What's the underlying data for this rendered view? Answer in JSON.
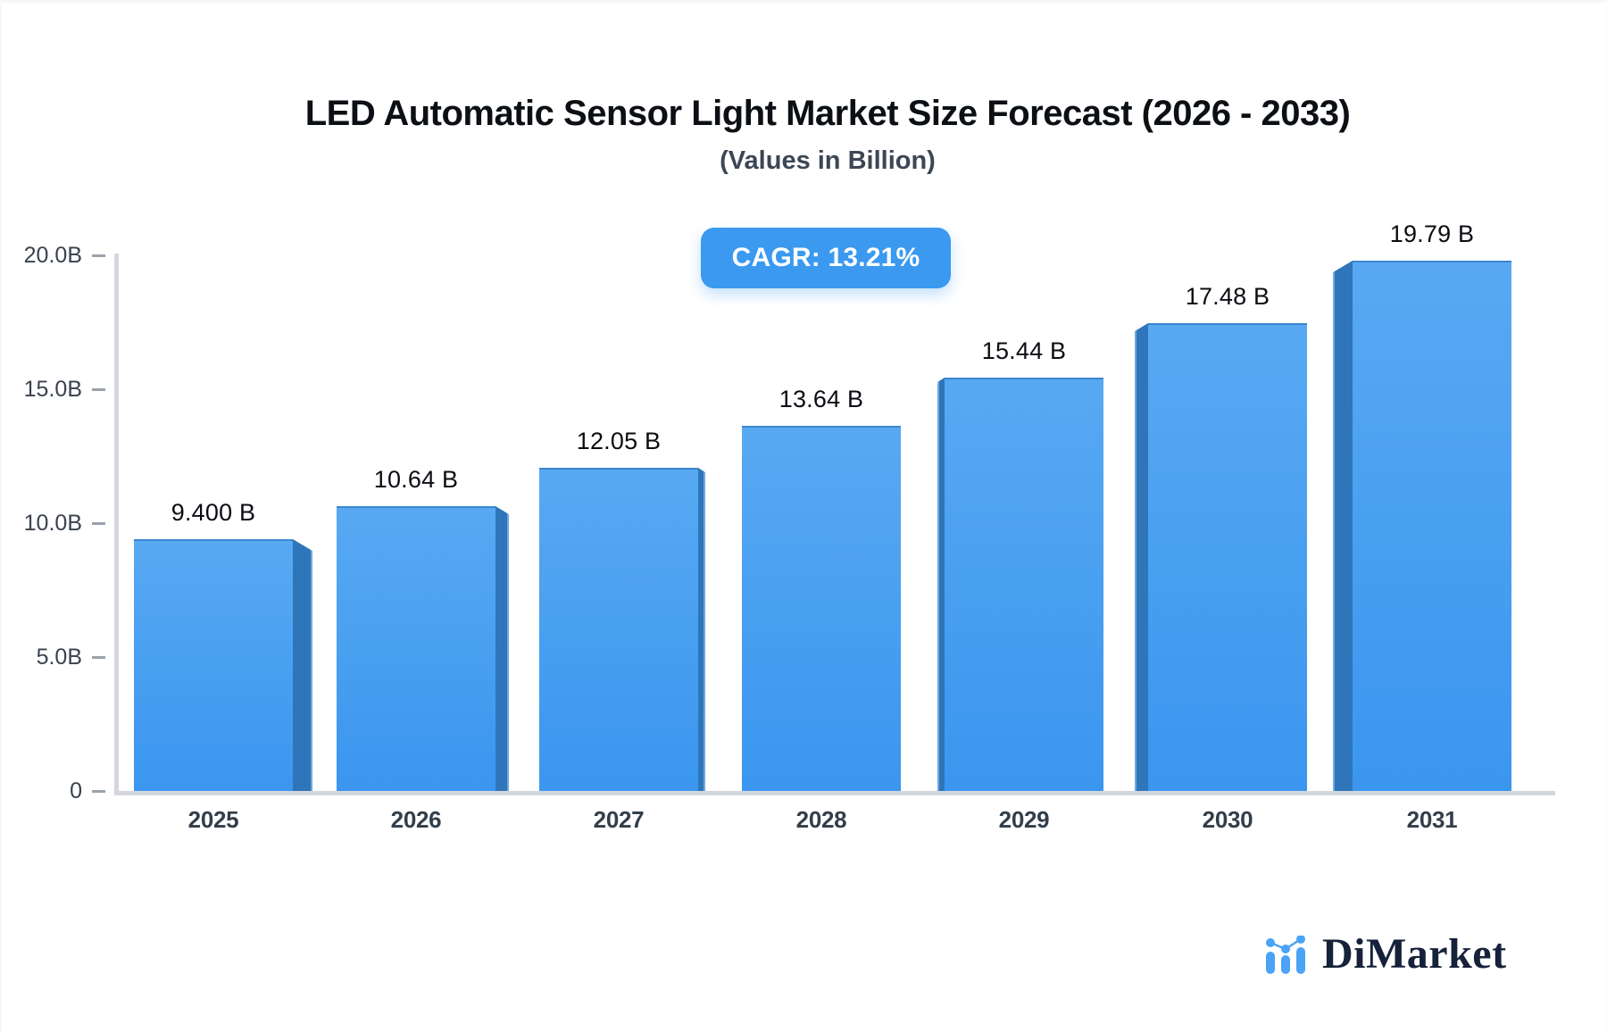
{
  "header": {
    "title": "LED Automatic Sensor Light Market Size Forecast (2026 - 2033)",
    "subtitle": "(Values in Billion)"
  },
  "badge": {
    "label": "CAGR: 13.21%",
    "background_color": "#3b99f0",
    "text_color": "#ffffff"
  },
  "chart_data": {
    "type": "bar",
    "title": "LED Automatic Sensor Light Market Size Forecast (2026 - 2033)",
    "subtitle": "(Values in Billion)",
    "categories": [
      "2025",
      "2026",
      "2027",
      "2028",
      "2029",
      "2030",
      "2031"
    ],
    "values": [
      9.4,
      10.64,
      12.05,
      13.64,
      15.44,
      17.48,
      19.79
    ],
    "value_labels": [
      "9.400 B",
      "10.64 B",
      "12.05 B",
      "13.64 B",
      "15.44 B",
      "17.48 B",
      "19.79 B"
    ],
    "xlabel": "",
    "ylabel": "",
    "ylim": [
      0,
      20
    ],
    "yticks": [
      {
        "value": 0,
        "label": "0"
      },
      {
        "value": 5,
        "label": "5.0B"
      },
      {
        "value": 10,
        "label": "10.0B"
      },
      {
        "value": 15,
        "label": "15.0B"
      },
      {
        "value": 20,
        "label": "20.0B"
      }
    ],
    "grid": false,
    "legend": false,
    "colors": {
      "bar_face_top": "#58a9f2",
      "bar_face_bottom": "#3b96ef",
      "bar_side": "#2e76b9",
      "bar_side_edge": "#71a8dc",
      "axis_line": "#d3d7dd",
      "tick": "#9aa2ac",
      "tick_label": "#39424e",
      "value_label": "#0a0d12"
    }
  },
  "logo": {
    "text": "DiMarket",
    "icon": "bar-chart-logo-icon",
    "text_color": "#16213a",
    "icon_color": "#4aa3f7"
  }
}
